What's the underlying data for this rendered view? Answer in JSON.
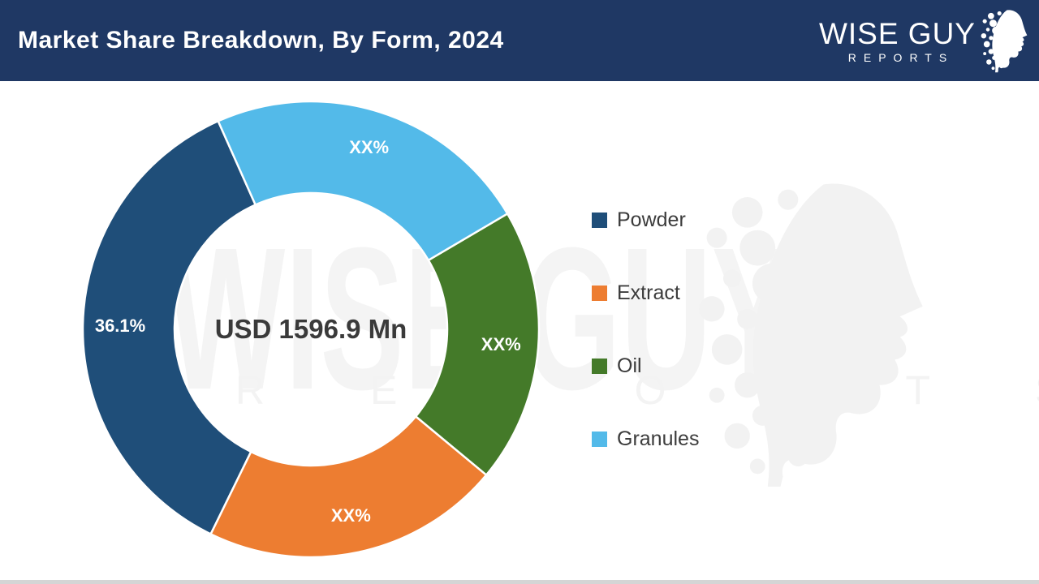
{
  "header": {
    "title": "Market Share Breakdown, By Form, 2024",
    "logo": {
      "line1": "WISE GUY",
      "line2": "REPORTS"
    }
  },
  "watermark": {
    "line1": "WISE GUY",
    "line2": "R E P O R T S"
  },
  "chart_data": {
    "type": "pie",
    "subtype": "donut",
    "title": "Market Share Breakdown, By Form, 2024",
    "center_label": "USD 1596.9 Mn",
    "year": "2024",
    "legend_position": "right",
    "start_angle_clockwise_from_top_deg": 336,
    "direction": "counterclockwise",
    "segments": [
      {
        "name": "Powder",
        "label": "36.1%",
        "value_pct": 36.1,
        "color": "#1F4E79"
      },
      {
        "name": "Extract",
        "label": "XX%",
        "value_pct": 21.2,
        "color": "#ED7D31"
      },
      {
        "name": "Oil",
        "label": "XX%",
        "value_pct": 19.5,
        "color": "#447A29"
      },
      {
        "name": "Granules",
        "label": "XX%",
        "value_pct": 23.2,
        "color": "#53BAE9"
      }
    ]
  },
  "colors": {
    "header_background": "#1F3864",
    "center_text": "#3A3A3A",
    "legend_text": "#3C3C3C",
    "slice_label_text": "#FFFFFF",
    "separator": "#FFFFFF",
    "watermark": "#F4F4F4",
    "bottom_bar": "#D5D5D5"
  }
}
